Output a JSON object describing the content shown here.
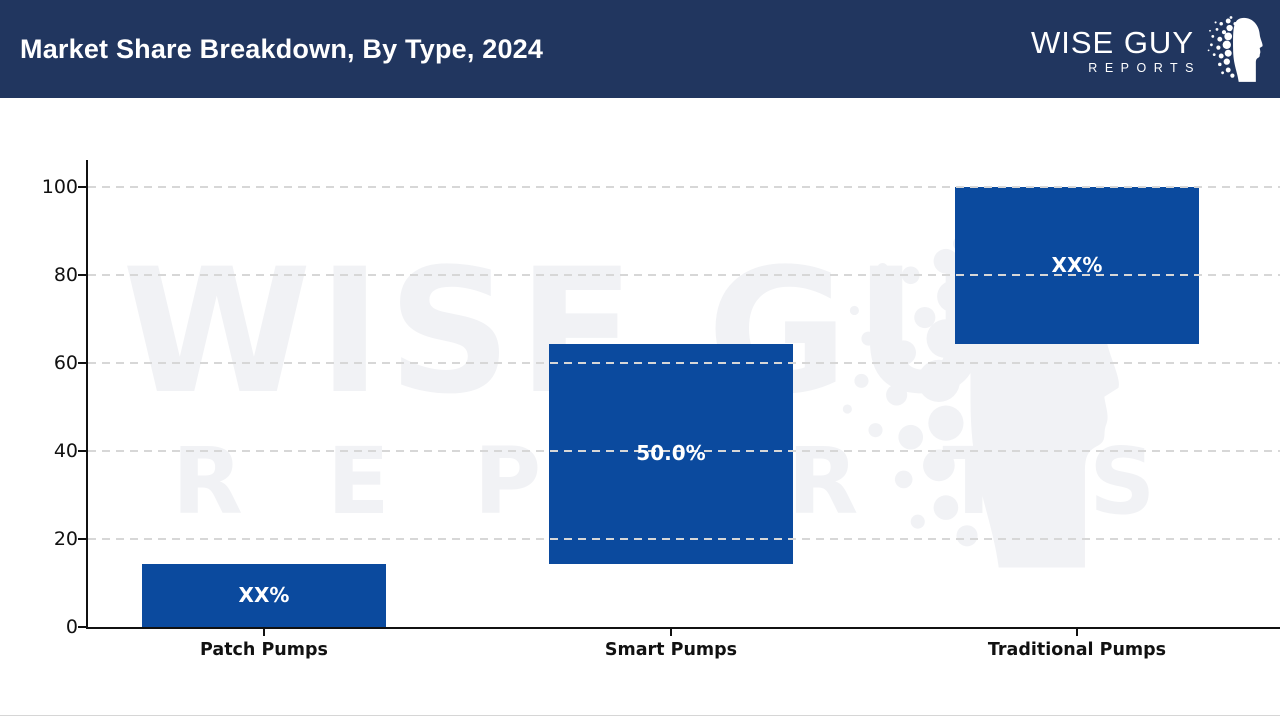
{
  "header": {
    "title": "Market Share Breakdown, By Type, 2024",
    "logo": {
      "line1": "WISE GUY",
      "line2": "REPORTS"
    }
  },
  "watermark": {
    "line1": "WISE GUY",
    "line2": "R E P O R T S"
  },
  "colors": {
    "header_bg": "#21365f",
    "bar": "#0b4a9e",
    "bar_label": "#ffffff",
    "gridline": "#d7d7d7",
    "axis": "#111111",
    "watermark": "#f1f2f5"
  },
  "chart_data": {
    "type": "bar",
    "subtype": "waterfall-floating-bars",
    "title": "Market Share Breakdown, By Type, 2024",
    "xlabel": "",
    "ylabel": "",
    "categories": [
      "Patch Pumps",
      "Smart Pumps",
      "Traditional Pumps"
    ],
    "segments": [
      {
        "category": "Patch Pumps",
        "start": 0,
        "end": 14.3,
        "value": 14.3,
        "label": "XX%"
      },
      {
        "category": "Smart Pumps",
        "start": 14.3,
        "end": 64.3,
        "value": 50.0,
        "label": "50.0%"
      },
      {
        "category": "Traditional Pumps",
        "start": 64.3,
        "end": 100,
        "value": 35.7,
        "label": "XX%"
      }
    ],
    "yticks": [
      0,
      20,
      40,
      60,
      80,
      100
    ],
    "ylim": [
      0,
      106
    ],
    "grid": "horizontal dashed",
    "legend": "none"
  }
}
